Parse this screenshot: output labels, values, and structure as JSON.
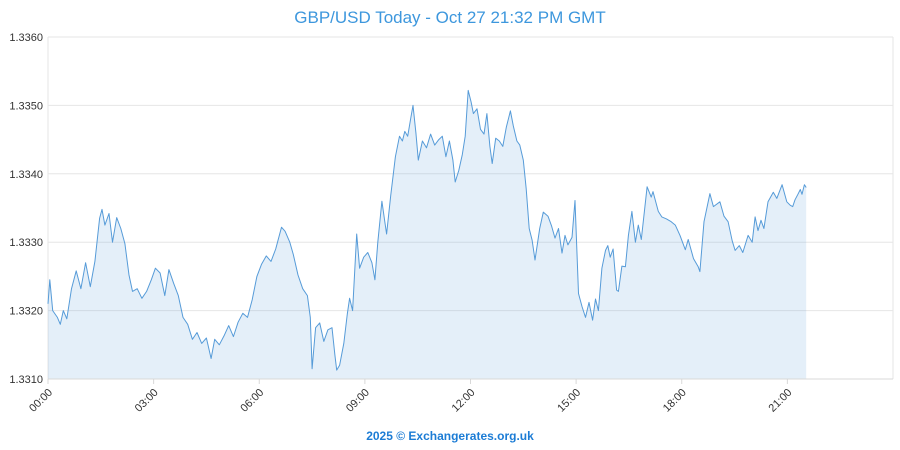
{
  "colors": {
    "title": "#3d97dd",
    "footer_link": "#1c7cd5",
    "line": "#569bd8",
    "fill": "rgba(86,155,216,0.16)",
    "grid": "#e6e6e6",
    "axis": "#d8d8d8",
    "label": "#333333"
  },
  "footer": {
    "text": "2025 © Exchangerates.org.uk"
  },
  "chart_data": {
    "type": "area",
    "title": "GBP/USD Today - Oct 27 21:32 PM GMT",
    "xlabel": "",
    "ylabel": "",
    "x_unit": "minutes_since_midnight",
    "x_range": [
      0,
      1440
    ],
    "y_range": [
      1.331,
      1.336
    ],
    "grid": "horizontal-only",
    "legend": "none",
    "y_ticks": [
      "1.3310",
      "1.3320",
      "1.3330",
      "1.3340",
      "1.3350",
      "1.3360"
    ],
    "x_ticks": [
      {
        "label": "00:00",
        "t": 0
      },
      {
        "label": "03:00",
        "t": 180
      },
      {
        "label": "06:00",
        "t": 360
      },
      {
        "label": "09:00",
        "t": 540
      },
      {
        "label": "12:00",
        "t": 720
      },
      {
        "label": "15:00",
        "t": 900
      },
      {
        "label": "18:00",
        "t": 1080
      },
      {
        "label": "21:00",
        "t": 1260
      }
    ],
    "series": [
      {
        "name": "GBP/USD",
        "points": [
          [
            0,
            1.3321
          ],
          [
            3,
            1.33245
          ],
          [
            8,
            1.332
          ],
          [
            16,
            1.3319
          ],
          [
            21,
            1.3318
          ],
          [
            26,
            1.332
          ],
          [
            32,
            1.33188
          ],
          [
            40,
            1.33232
          ],
          [
            48,
            1.33258
          ],
          [
            56,
            1.33232
          ],
          [
            64,
            1.3327
          ],
          [
            72,
            1.33235
          ],
          [
            80,
            1.33272
          ],
          [
            88,
            1.33335
          ],
          [
            92,
            1.33348
          ],
          [
            97,
            1.33325
          ],
          [
            104,
            1.33342
          ],
          [
            110,
            1.333
          ],
          [
            117,
            1.33336
          ],
          [
            124,
            1.3332
          ],
          [
            131,
            1.33298
          ],
          [
            138,
            1.33252
          ],
          [
            144,
            1.33228
          ],
          [
            152,
            1.33232
          ],
          [
            160,
            1.33218
          ],
          [
            168,
            1.33228
          ],
          [
            176,
            1.33245
          ],
          [
            183,
            1.33262
          ],
          [
            191,
            1.33255
          ],
          [
            199,
            1.33222
          ],
          [
            206,
            1.3326
          ],
          [
            214,
            1.3324
          ],
          [
            222,
            1.33222
          ],
          [
            230,
            1.3319
          ],
          [
            238,
            1.3318
          ],
          [
            246,
            1.33158
          ],
          [
            254,
            1.33168
          ],
          [
            262,
            1.33152
          ],
          [
            270,
            1.3316
          ],
          [
            278,
            1.3313
          ],
          [
            284,
            1.33158
          ],
          [
            292,
            1.3315
          ],
          [
            300,
            1.33163
          ],
          [
            308,
            1.33178
          ],
          [
            316,
            1.33162
          ],
          [
            324,
            1.33183
          ],
          [
            332,
            1.33196
          ],
          [
            340,
            1.3319
          ],
          [
            348,
            1.33216
          ],
          [
            356,
            1.3325
          ],
          [
            364,
            1.33268
          ],
          [
            372,
            1.3328
          ],
          [
            380,
            1.33272
          ],
          [
            388,
            1.3329
          ],
          [
            398,
            1.33322
          ],
          [
            404,
            1.33316
          ],
          [
            412,
            1.333
          ],
          [
            418,
            1.33282
          ],
          [
            426,
            1.33252
          ],
          [
            434,
            1.33232
          ],
          [
            442,
            1.33222
          ],
          [
            447,
            1.3319
          ],
          [
            450,
            1.33115
          ],
          [
            456,
            1.33175
          ],
          [
            463,
            1.33182
          ],
          [
            470,
            1.33155
          ],
          [
            477,
            1.33172
          ],
          [
            484,
            1.33175
          ],
          [
            489,
            1.33135
          ],
          [
            492,
            1.33113
          ],
          [
            497,
            1.3312
          ],
          [
            504,
            1.33152
          ],
          [
            510,
            1.33195
          ],
          [
            514,
            1.33218
          ],
          [
            519,
            1.332
          ],
          [
            526,
            1.33312
          ],
          [
            531,
            1.33262
          ],
          [
            538,
            1.33278
          ],
          [
            545,
            1.33285
          ],
          [
            552,
            1.3327
          ],
          [
            557,
            1.33245
          ],
          [
            562,
            1.333
          ],
          [
            569,
            1.3336
          ],
          [
            574,
            1.3333
          ],
          [
            577,
            1.33312
          ],
          [
            584,
            1.33368
          ],
          [
            592,
            1.33425
          ],
          [
            599,
            1.33455
          ],
          [
            604,
            1.33448
          ],
          [
            608,
            1.33462
          ],
          [
            613,
            1.33455
          ],
          [
            618,
            1.3348
          ],
          [
            622,
            1.335
          ],
          [
            627,
            1.3346
          ],
          [
            631,
            1.3342
          ],
          [
            638,
            1.33448
          ],
          [
            645,
            1.33438
          ],
          [
            652,
            1.33458
          ],
          [
            659,
            1.33442
          ],
          [
            666,
            1.3345
          ],
          [
            672,
            1.33455
          ],
          [
            678,
            1.33425
          ],
          [
            684,
            1.33448
          ],
          [
            690,
            1.3342
          ],
          [
            694,
            1.33388
          ],
          [
            700,
            1.33405
          ],
          [
            706,
            1.33428
          ],
          [
            711,
            1.33455
          ],
          [
            716,
            1.33522
          ],
          [
            721,
            1.33505
          ],
          [
            725,
            1.33488
          ],
          [
            731,
            1.33495
          ],
          [
            737,
            1.33465
          ],
          [
            743,
            1.33458
          ],
          [
            748,
            1.33488
          ],
          [
            753,
            1.3344
          ],
          [
            757,
            1.33415
          ],
          [
            763,
            1.33452
          ],
          [
            769,
            1.33448
          ],
          [
            775,
            1.3344
          ],
          [
            781,
            1.33468
          ],
          [
            788,
            1.33492
          ],
          [
            793,
            1.3347
          ],
          [
            799,
            1.33448
          ],
          [
            804,
            1.33442
          ],
          [
            810,
            1.3342
          ],
          [
            815,
            1.33378
          ],
          [
            820,
            1.3332
          ],
          [
            825,
            1.33303
          ],
          [
            830,
            1.33274
          ],
          [
            838,
            1.3332
          ],
          [
            844,
            1.33344
          ],
          [
            852,
            1.33338
          ],
          [
            858,
            1.33324
          ],
          [
            864,
            1.33306
          ],
          [
            870,
            1.3332
          ],
          [
            876,
            1.33284
          ],
          [
            881,
            1.3331
          ],
          [
            886,
            1.33296
          ],
          [
            893,
            1.33307
          ],
          [
            898,
            1.33361
          ],
          [
            904,
            1.33225
          ],
          [
            910,
            1.33206
          ],
          [
            916,
            1.3319
          ],
          [
            922,
            1.33212
          ],
          [
            928,
            1.33186
          ],
          [
            933,
            1.33217
          ],
          [
            938,
            1.332
          ],
          [
            944,
            1.33262
          ],
          [
            950,
            1.33288
          ],
          [
            954,
            1.33295
          ],
          [
            958,
            1.33278
          ],
          [
            963,
            1.3329
          ],
          [
            969,
            1.3323
          ],
          [
            972,
            1.33228
          ],
          [
            978,
            1.33265
          ],
          [
            984,
            1.33264
          ],
          [
            989,
            1.3331
          ],
          [
            995,
            1.33345
          ],
          [
            1001,
            1.333
          ],
          [
            1006,
            1.33325
          ],
          [
            1011,
            1.33304
          ],
          [
            1021,
            1.33381
          ],
          [
            1028,
            1.33366
          ],
          [
            1031,
            1.33374
          ],
          [
            1040,
            1.33345
          ],
          [
            1046,
            1.33337
          ],
          [
            1054,
            1.33334
          ],
          [
            1062,
            1.3333
          ],
          [
            1069,
            1.33325
          ],
          [
            1077,
            1.3331
          ],
          [
            1086,
            1.33289
          ],
          [
            1091,
            1.33304
          ],
          [
            1100,
            1.33276
          ],
          [
            1108,
            1.33264
          ],
          [
            1111,
            1.33257
          ],
          [
            1118,
            1.3333
          ],
          [
            1128,
            1.33371
          ],
          [
            1134,
            1.33352
          ],
          [
            1145,
            1.33359
          ],
          [
            1152,
            1.33338
          ],
          [
            1159,
            1.3333
          ],
          [
            1166,
            1.33302
          ],
          [
            1171,
            1.33288
          ],
          [
            1178,
            1.33295
          ],
          [
            1184,
            1.33285
          ],
          [
            1193,
            1.3331
          ],
          [
            1200,
            1.333
          ],
          [
            1205,
            1.33337
          ],
          [
            1210,
            1.33317
          ],
          [
            1215,
            1.33332
          ],
          [
            1220,
            1.3332
          ],
          [
            1227,
            1.33359
          ],
          [
            1236,
            1.33373
          ],
          [
            1242,
            1.33364
          ],
          [
            1251,
            1.33384
          ],
          [
            1259,
            1.33359
          ],
          [
            1265,
            1.33354
          ],
          [
            1269,
            1.33352
          ],
          [
            1273,
            1.33362
          ],
          [
            1278,
            1.3337
          ],
          [
            1282,
            1.33377
          ],
          [
            1285,
            1.3337
          ],
          [
            1289,
            1.33384
          ],
          [
            1292,
            1.3338
          ]
        ]
      }
    ]
  }
}
